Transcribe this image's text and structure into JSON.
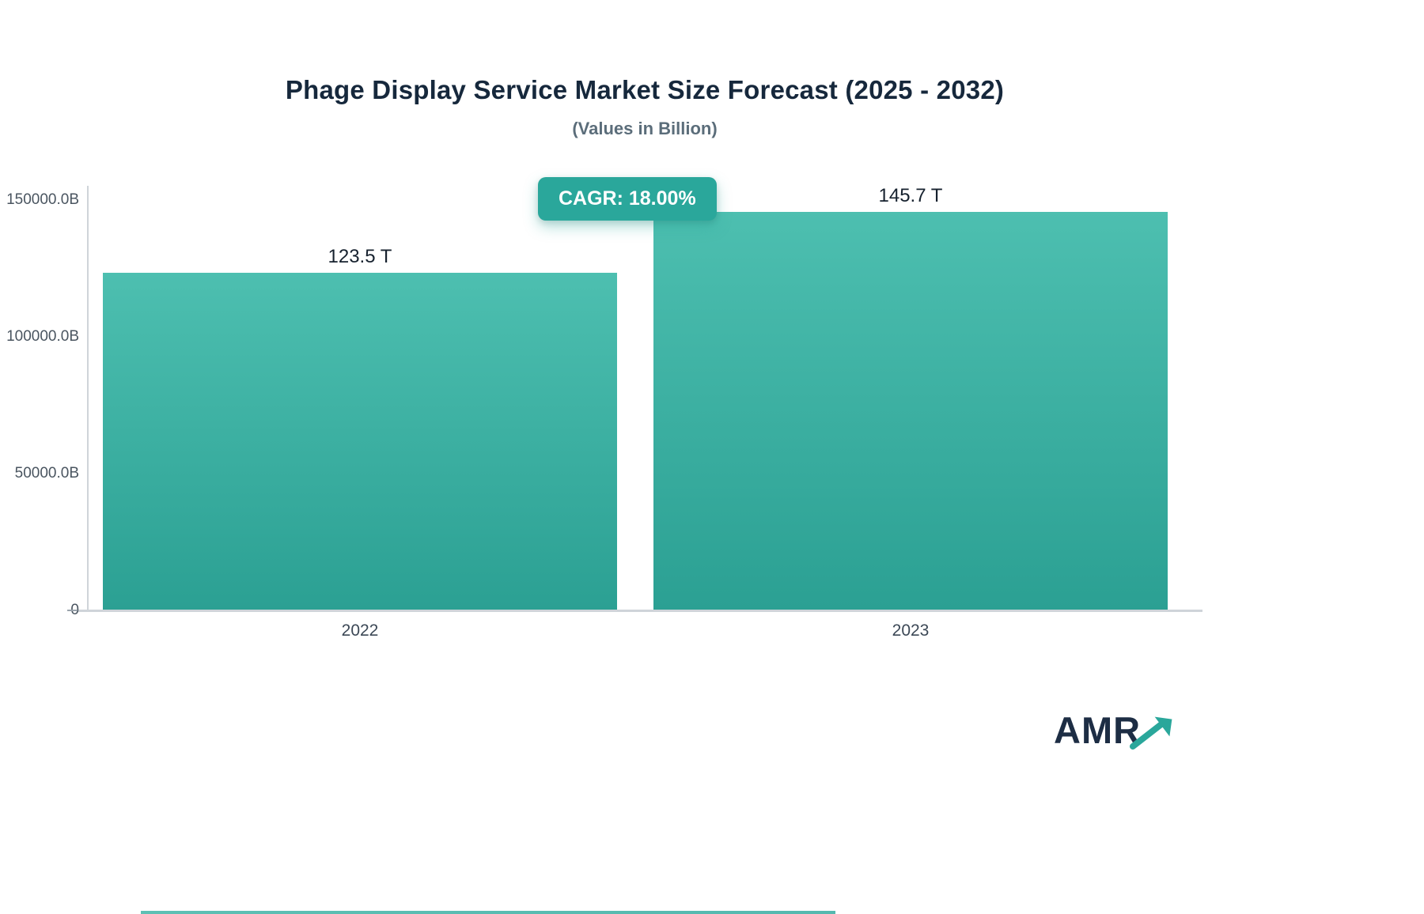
{
  "chart_data": {
    "type": "bar",
    "title": "Phage Display Service Market Size Forecast (2025 - 2032)",
    "subtitle": "(Values in Billion)",
    "cagr_label": "CAGR: 18.00%",
    "categories": [
      "2022",
      "2023"
    ],
    "values": [
      123500,
      145700
    ],
    "value_labels": [
      "123.5 T",
      "145.7 T"
    ],
    "ylabel": "",
    "xlabel": "",
    "ylim": [
      0,
      150000
    ],
    "y_ticks": [
      "150000.0B",
      "100000.0B",
      "50000.0B",
      "0"
    ],
    "grid": false,
    "legend": false,
    "bar_color_top": "#4dbfb0",
    "bar_color_bottom": "#2ba093",
    "accent_color": "#2aa79b"
  },
  "logo": {
    "text": "AMR"
  }
}
